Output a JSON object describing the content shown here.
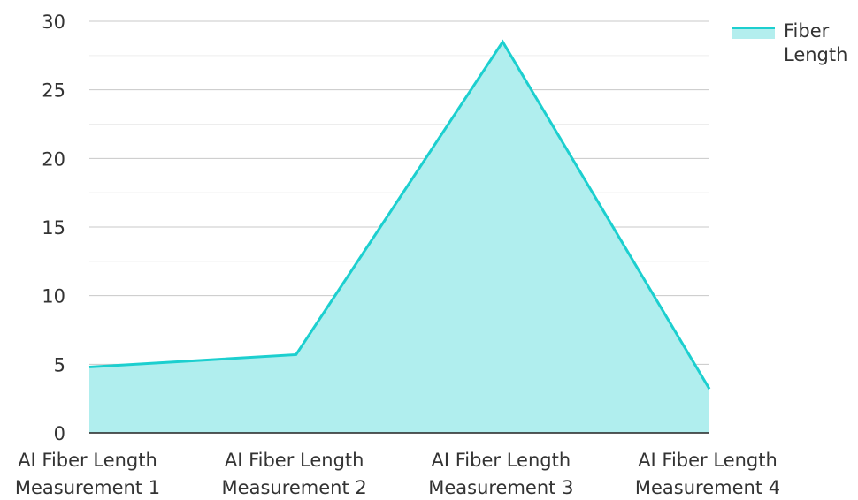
{
  "chart_data": {
    "type": "area",
    "categories": [
      "AI Fiber Length Measurement 1",
      "AI Fiber Length Measurement 2",
      "AI Fiber Length Measurement 3",
      "AI Fiber Length Measurement 4"
    ],
    "series": [
      {
        "name": "Fiber Length",
        "values": [
          4.8,
          5.7,
          28.5,
          3.2
        ],
        "color": "#1ccfcf"
      }
    ],
    "y_ticks": [
      0,
      5,
      10,
      15,
      20,
      25,
      30
    ],
    "ylim": [
      0,
      30
    ],
    "grid": true,
    "legend": "top-right"
  }
}
